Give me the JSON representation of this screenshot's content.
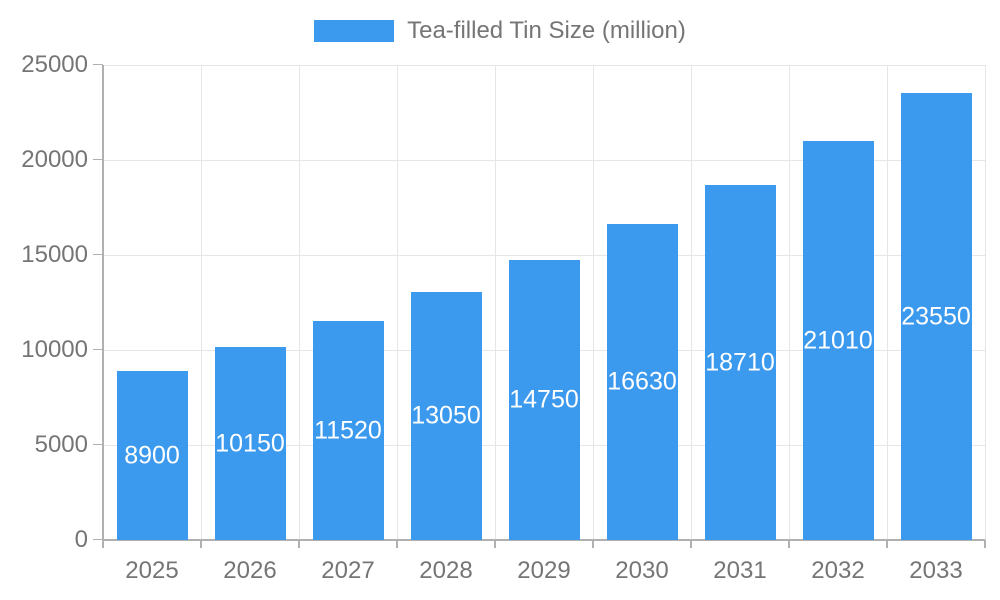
{
  "legend": {
    "label": "Tea-filled Tin Size (million)"
  },
  "chart_data": {
    "type": "bar",
    "title": "Tea-filled Tin Size (million)",
    "categories": [
      "2025",
      "2026",
      "2027",
      "2028",
      "2029",
      "2030",
      "2031",
      "2032",
      "2033"
    ],
    "values": [
      8900,
      10150,
      11520,
      13050,
      14750,
      16630,
      18710,
      21010,
      23550
    ],
    "xlabel": "",
    "ylabel": "",
    "ylim": [
      0,
      25000
    ],
    "ytick_step": 5000,
    "yticks": [
      0,
      5000,
      10000,
      15000,
      20000,
      25000
    ],
    "grid": true,
    "legend_position": "top-center",
    "bar_color": "#3b99ee",
    "bar_label_color": "#ffffff",
    "axis_text_color": "#757575",
    "gridline_color": "#e6e6e6",
    "axis_line_color": "#b0b0b0"
  }
}
